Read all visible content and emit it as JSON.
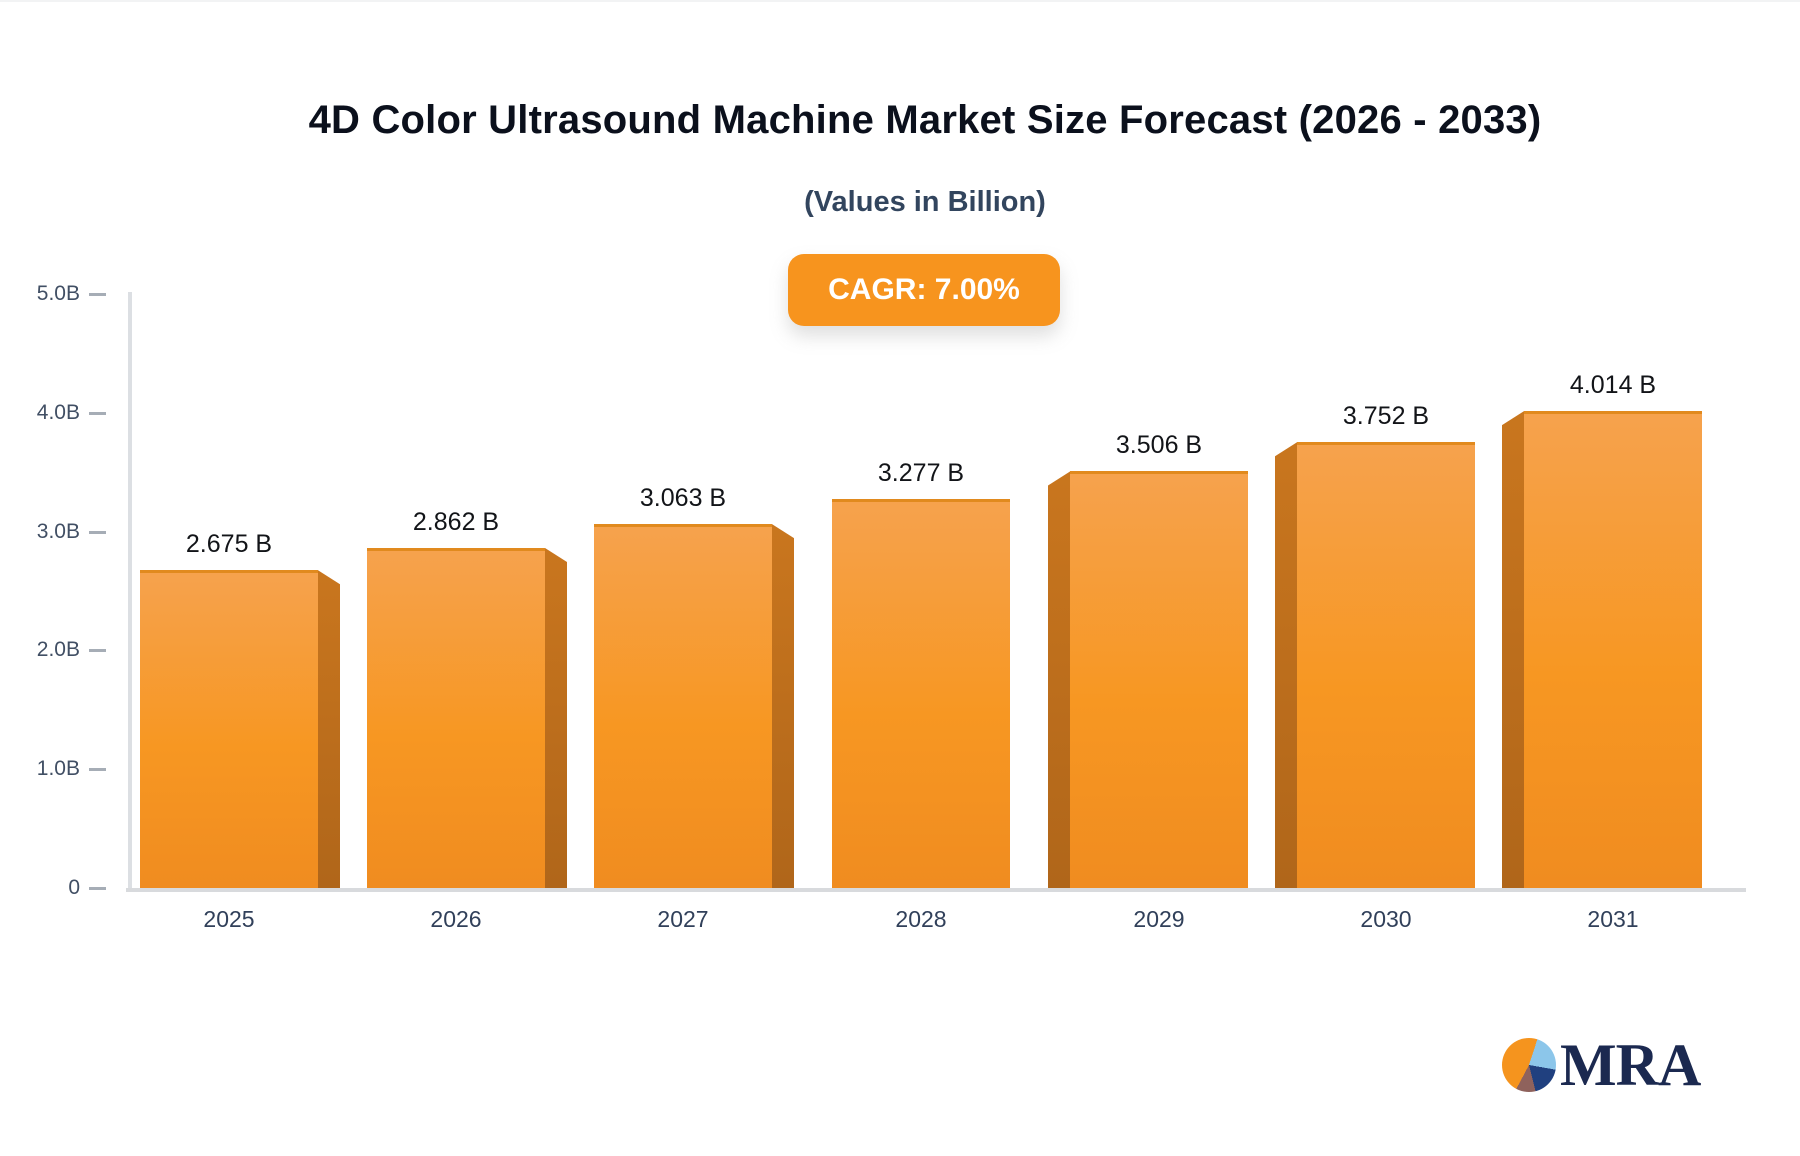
{
  "header": {
    "title": "4D Color Ultrasound Machine Market Size Forecast (2026 - 2033)",
    "subtitle": "(Values in Billion)",
    "cagr_badge": "CAGR: 7.00%"
  },
  "chart_data": {
    "type": "bar",
    "title": "4D Color Ultrasound Machine Market Size Forecast (2026 - 2033)",
    "subtitle": "(Values in Billion)",
    "cagr_percent": "7.00%",
    "categories": [
      "2025",
      "2026",
      "2027",
      "2028",
      "2029",
      "2030",
      "2031"
    ],
    "values": [
      2.675,
      2.862,
      3.063,
      3.277,
      3.506,
      3.752,
      4.014
    ],
    "bar_labels": [
      "2.675 B",
      "2.862 B",
      "3.063 B",
      "3.277 B",
      "3.506 B",
      "3.752 B",
      "4.014 B"
    ],
    "unit": "Billion",
    "xlabel": "",
    "ylabel": "",
    "ylim": [
      0,
      5
    ],
    "y_ticks": [
      {
        "label": "5.0B",
        "value": 5.0
      },
      {
        "label": "4.0B",
        "value": 4.0
      },
      {
        "label": "3.0B",
        "value": 3.0
      },
      {
        "label": "2.0B",
        "value": 2.0
      },
      {
        "label": "1.0B",
        "value": 1.0
      },
      {
        "label": "0",
        "value": 0.0
      }
    ],
    "grid": "off",
    "legend_position": "none",
    "bar_color": "#F7941E",
    "bar_side_color": "#B96C1B",
    "badge_color": "#F7941E"
  },
  "logo": {
    "text": "MRA",
    "pie_slice_colors": [
      "#F5941E",
      "#8CC6EA",
      "#20407F",
      "#8F625C"
    ],
    "text_color": "#1B2950"
  }
}
